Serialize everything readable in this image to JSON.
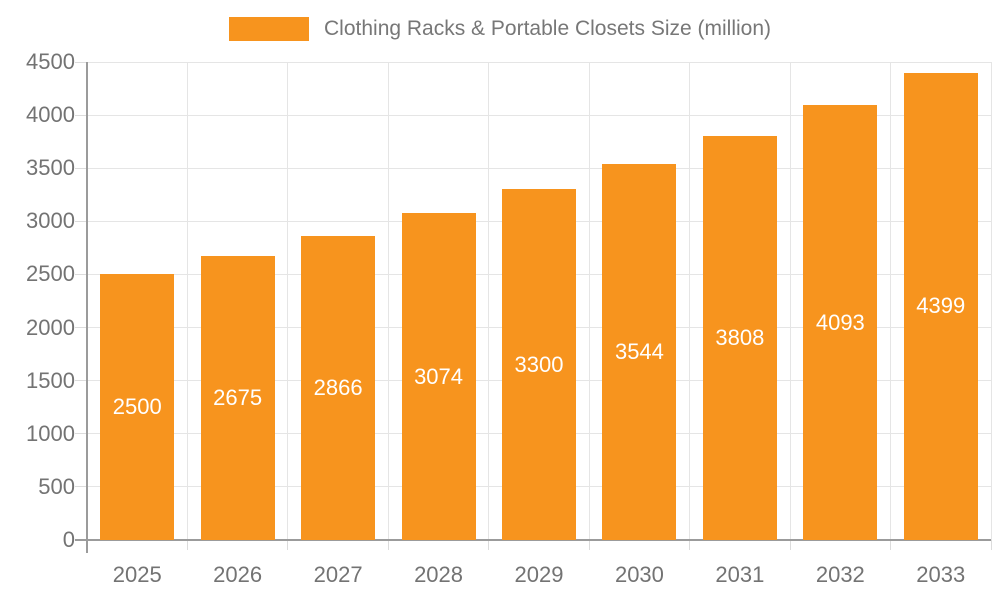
{
  "colors": {
    "bar": "#F7941E",
    "gridline": "#E5E5E5",
    "axis_line": "#9B9B9B",
    "axis_text": "#737373",
    "legend_text": "#777777",
    "value_label_text": "#FFFFFF",
    "background": "#FFFFFF"
  },
  "chart_data": {
    "type": "bar",
    "title": "Clothing Racks & Portable Closets Size (million)",
    "categories": [
      "2025",
      "2026",
      "2027",
      "2028",
      "2029",
      "2030",
      "2031",
      "2032",
      "2033"
    ],
    "values": [
      2500,
      2675,
      2866,
      3074,
      3300,
      3544,
      3808,
      4093,
      4399
    ],
    "series": [
      {
        "name": "Clothing Racks & Portable Closets Size (million)",
        "values": [
          2500,
          2675,
          2866,
          3074,
          3300,
          3544,
          3808,
          4093,
          4399
        ]
      }
    ],
    "xlabel": "",
    "ylabel": "",
    "ylim": [
      0,
      4500
    ],
    "yticks": [
      0,
      500,
      1000,
      1500,
      2000,
      2500,
      3000,
      3500,
      4000,
      4500
    ],
    "grid": true,
    "legend_position": "top-center",
    "value_labels": "inside-center-white"
  }
}
